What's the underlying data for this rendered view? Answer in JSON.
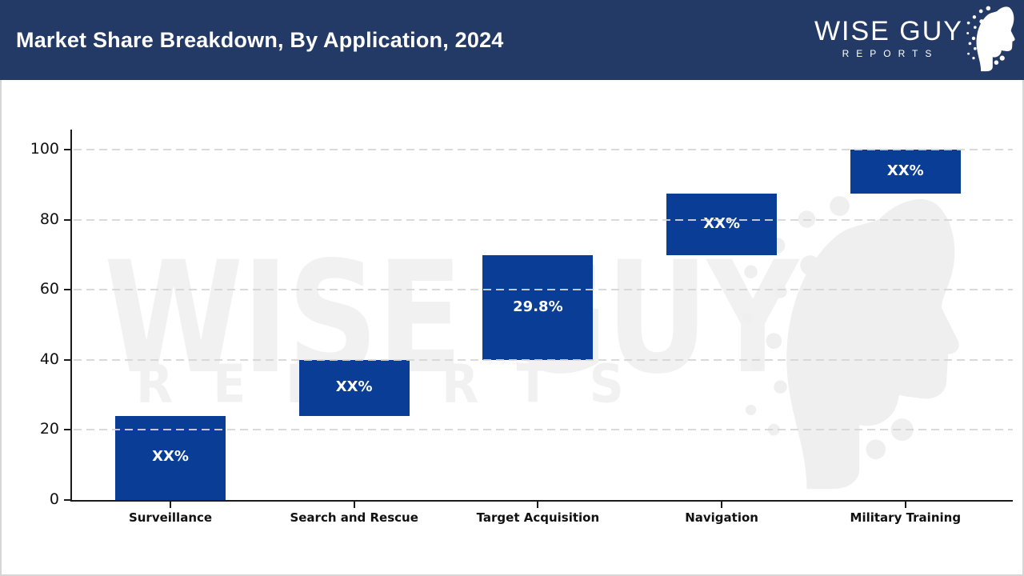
{
  "header": {
    "title": "Market Share Breakdown, By Application, 2024",
    "logo": {
      "wordmark": "WISE GUY",
      "subtext": "REPORTS"
    }
  },
  "watermark": {
    "line1": "WISE GUY",
    "line2": "REPORTS"
  },
  "chart_data": {
    "type": "bar",
    "subtype": "waterfall",
    "title": "Market Share Breakdown, By Application, 2024",
    "categories": [
      "Surveillance",
      "Search and Rescue",
      "Target Acquisition",
      "Navigation",
      "Military Training"
    ],
    "segments": [
      {
        "category": "Surveillance",
        "start": 0,
        "end": 24,
        "value": 24,
        "label": "XX%"
      },
      {
        "category": "Search and Rescue",
        "start": 24,
        "end": 40,
        "value": 16,
        "label": "XX%"
      },
      {
        "category": "Target Acquisition",
        "start": 40,
        "end": 69.8,
        "value": 29.8,
        "label": "29.8%"
      },
      {
        "category": "Navigation",
        "start": 69.8,
        "end": 87.4,
        "value": 17.6,
        "label": "XX%"
      },
      {
        "category": "Military Training",
        "start": 87.4,
        "end": 100,
        "value": 12.6,
        "label": "XX%"
      }
    ],
    "yticks": [
      0,
      20,
      40,
      60,
      80,
      100
    ],
    "ylim": [
      0,
      106
    ],
    "grid": "dashed horizontal",
    "legend": "none",
    "colors": {
      "bar": "#0a3e96",
      "header": "#233a66",
      "grid": "#d6d6d6",
      "bar_label": "#ffffff",
      "axis": "#1a1a1a"
    }
  }
}
